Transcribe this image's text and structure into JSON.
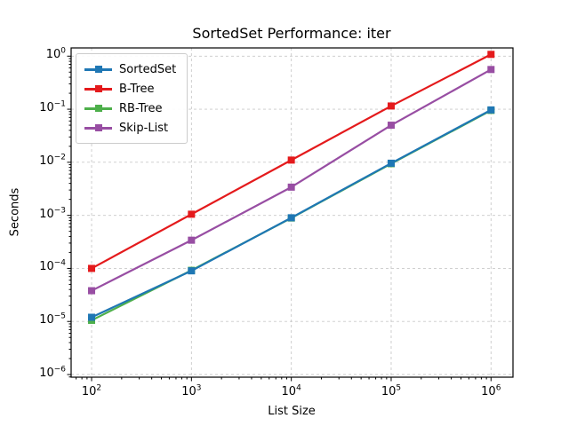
{
  "title": "SortedSet Performance: iter",
  "chart_data": {
    "type": "line",
    "title": "SortedSet Performance: iter",
    "xlabel": "List Size",
    "ylabel": "Seconds",
    "xscale": "log",
    "yscale": "log",
    "x": [
      100,
      1000,
      10000,
      100000,
      1000000
    ],
    "series": [
      {
        "name": "SortedSet",
        "color": "#1f77b4",
        "values": [
          1.2e-05,
          9e-05,
          0.0009,
          0.0096,
          0.097
        ]
      },
      {
        "name": "B-Tree",
        "color": "#e41a1c",
        "values": [
          0.0001,
          0.00105,
          0.011,
          0.115,
          1.08
        ]
      },
      {
        "name": "RB-Tree",
        "color": "#4daf4a",
        "values": [
          1.05e-05,
          9.2e-05,
          0.00089,
          0.0094,
          0.095
        ]
      },
      {
        "name": "Skip-List",
        "color": "#984ea3",
        "values": [
          3.8e-05,
          0.00034,
          0.0034,
          0.05,
          0.56
        ]
      }
    ],
    "x_ticks_exp": [
      2,
      3,
      4,
      5,
      6
    ],
    "y_ticks_exp": [
      0,
      -1,
      -2,
      -3,
      -4,
      -5,
      -6
    ],
    "xlim_log": [
      1.795,
      6.22
    ],
    "ylim_log": [
      -6.05,
      0.155
    ],
    "grid": true,
    "grid_style": "dashed",
    "marker": "square",
    "legend_position": "upper left",
    "draw_order": [
      "RB-Tree",
      "SortedSet",
      "Skip-List",
      "B-Tree"
    ]
  }
}
